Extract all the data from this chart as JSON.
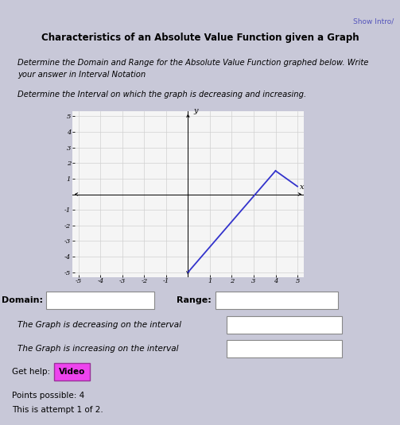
{
  "title": "Characteristics of an Absolute Value Function given a Graph",
  "instruction1a": "Determine the Domain and Range for the Absolute Value Function graphed below. Write",
  "instruction1b": "your answer in Interval Notation",
  "instruction2": "Determine the Interval on which the graph is decreasing and increasing.",
  "graph_line1": [
    [
      0,
      -5
    ],
    [
      4,
      1.5
    ]
  ],
  "graph_line2": [
    [
      4,
      1.5
    ],
    [
      5,
      0.5
    ]
  ],
  "x_range": [
    -5,
    5
  ],
  "y_range": [
    -5,
    5
  ],
  "line_color": "#3333cc",
  "grid_color": "#cccccc",
  "graph_bg": "#f5f5f5",
  "outer_bg": "#c8c8d8",
  "panel_bg": "#dcdce8",
  "label_domain": "Domain:",
  "label_range": "Range:",
  "label_decreasing": "The Graph is decreasing on the interval",
  "label_increasing": "The Graph is increasing on the interval",
  "label_help": "Get help:",
  "label_video": "Video",
  "label_points": "Points possible: 4",
  "label_attempt": "This is attempt 1 of 2.",
  "video_bg": "#ee44ee",
  "show_intro": "Show Intro/"
}
